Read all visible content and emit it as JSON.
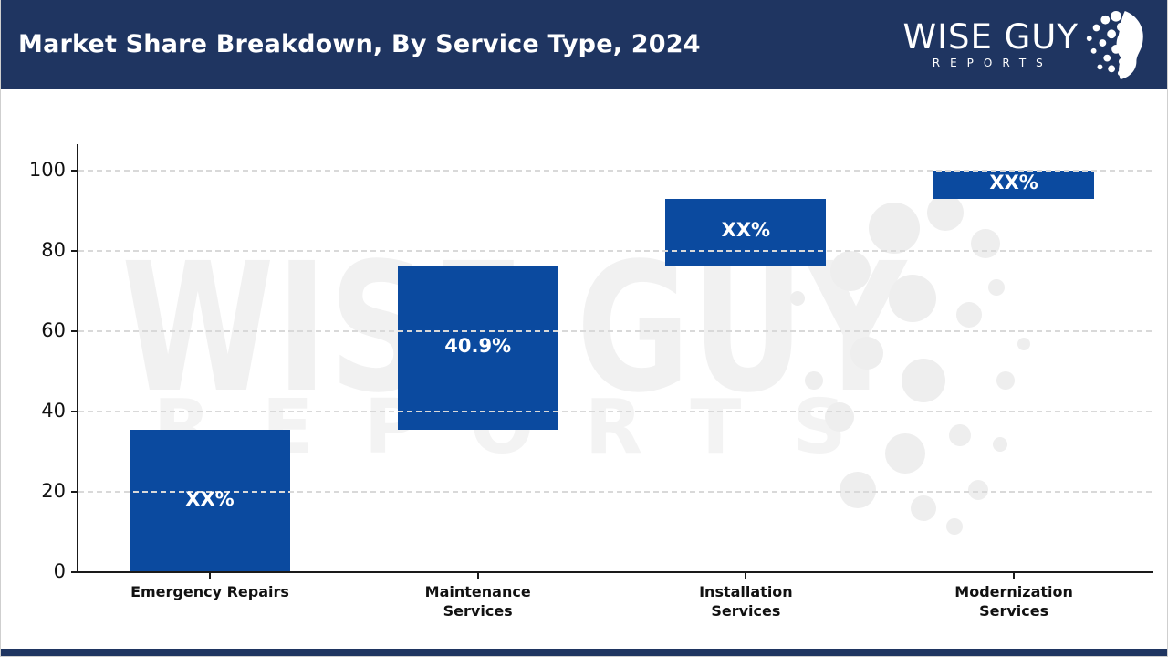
{
  "header": {
    "title": "Market Share Breakdown, By Service Type, 2024",
    "logo": {
      "wordmark": "WISE GUY",
      "sub": "REPORTS"
    }
  },
  "watermark": {
    "wordmark": "WISE GUY",
    "sub": "REPORTS"
  },
  "footer": {},
  "chart_data": {
    "type": "bar",
    "subtype": "waterfall",
    "title": "Market Share Breakdown, By Service Type, 2024",
    "categories": [
      "Emergency Repairs",
      "Maintenance\nServices",
      "Installation\nServices",
      "Modernization\nServices"
    ],
    "bars": [
      {
        "category": "Emergency Repairs",
        "start": 0,
        "end": 35.5,
        "value": 35.5,
        "label": "XX%"
      },
      {
        "category": "Maintenance Services",
        "start": 35.5,
        "end": 76.4,
        "value": 40.9,
        "label": "40.9%"
      },
      {
        "category": "Installation Services",
        "start": 76.4,
        "end": 93.0,
        "value": 16.6,
        "label": "XX%"
      },
      {
        "category": "Modernization Services",
        "start": 93.0,
        "end": 100.0,
        "value": 7.0,
        "label": "XX%"
      }
    ],
    "yticks": [
      0,
      20,
      40,
      60,
      80,
      100
    ],
    "ylim": [
      0,
      106
    ],
    "xlabel": "",
    "ylabel": "",
    "grid": "horizontal-dashed",
    "legend": "none",
    "colors": {
      "bar": "#0b4a9f",
      "bar_label": "#ffffff",
      "header_bg": "#1f3561",
      "footer_bg": "#1f3561",
      "gridline": "#d9d9d9",
      "axis": "#1a1a1a"
    }
  }
}
